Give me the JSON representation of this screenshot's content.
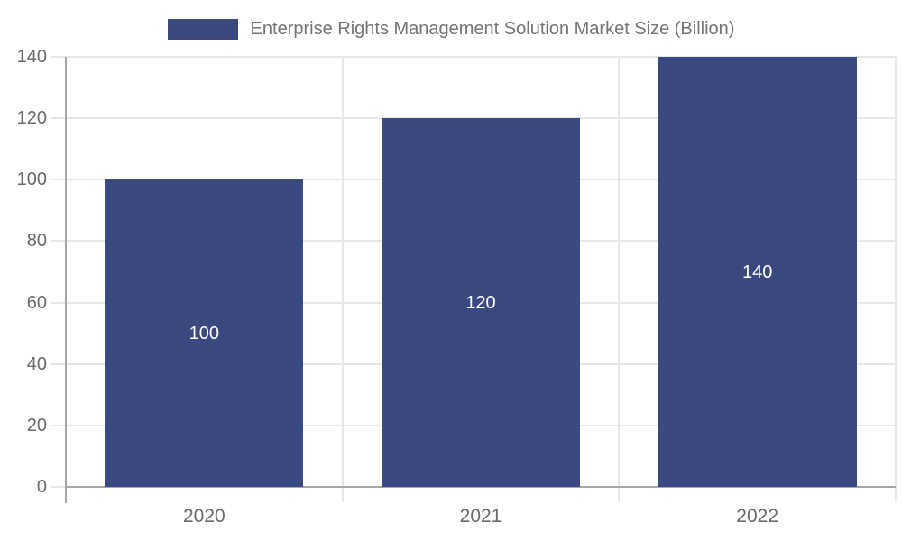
{
  "chart_data": {
    "type": "bar",
    "title": "Enterprise Rights Management Solution Market Size (Billion)",
    "categories": [
      "2020",
      "2021",
      "2022"
    ],
    "series": [
      {
        "name": "Enterprise Rights Management Solution Market Size (Billion)",
        "values": [
          100,
          120,
          140
        ]
      }
    ],
    "data_labels": [
      "100",
      "120",
      "140"
    ],
    "xlabel": "",
    "ylabel": "",
    "ylim": [
      0,
      140
    ],
    "yticks": [
      0,
      20,
      40,
      60,
      80,
      100,
      120,
      140
    ],
    "grid": true,
    "legend_position": "top-center"
  },
  "colors": {
    "bar": "#3A4A80",
    "grid": "#E7E7E7",
    "axis": "#A6A6A6",
    "tick_label": "#696969",
    "title": "#737373",
    "data_label": "#FFFFFF",
    "background": "#FFFFFF"
  }
}
